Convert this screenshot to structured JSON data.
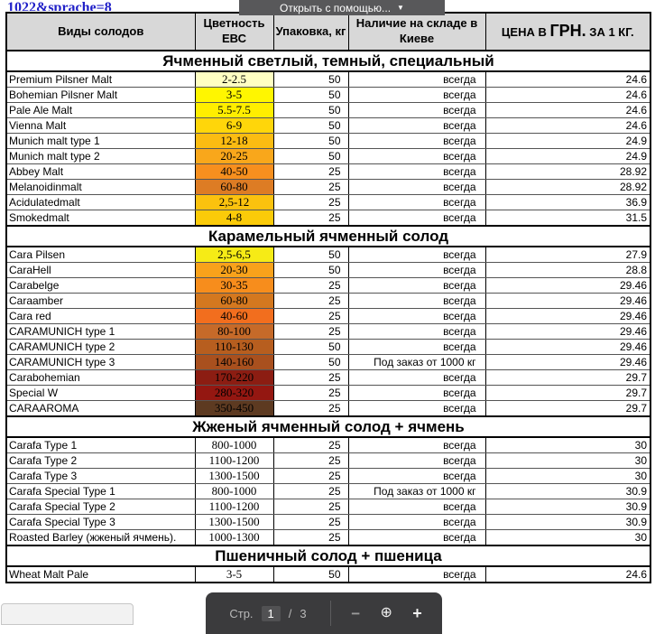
{
  "page": {
    "top_link_text": "1022&sprache=8",
    "open_with": {
      "label": "Открыть с помощью...",
      "caret": "▼"
    }
  },
  "table": {
    "columns": [
      "Виды солодов",
      "Цветность ЕВС",
      "Упаковка, кг",
      "Наличие на складе в Киеве"
    ],
    "price_header": {
      "pre": "ЦЕНА В ",
      "grn": "ГРН.",
      "post": " ЗА 1 КГ."
    },
    "sections": [
      {
        "title": "Ячменный светлый, темный, специальный",
        "rows": [
          {
            "name": "Premium Pilsner Malt",
            "ebc": "2-2.5",
            "ebc_color": "#FFFFC2",
            "pack": "50",
            "stock": "всегда",
            "price": "24.6"
          },
          {
            "name": "Bohemian Pilsner Malt",
            "ebc": "3-5",
            "ebc_color": "#FFF600",
            "pack": "50",
            "stock": "всегда",
            "price": "24.6"
          },
          {
            "name": "Pale Ale Malt",
            "ebc": "5.5-7.5",
            "ebc_color": "#FFEE00",
            "pack": "50",
            "stock": "всегда",
            "price": "24.6"
          },
          {
            "name": "Vienna Malt",
            "ebc": "6-9",
            "ebc_color": "#FFD60A",
            "pack": "50",
            "stock": "всегда",
            "price": "24.6"
          },
          {
            "name": "Munich malt type 1",
            "ebc": "12-18",
            "ebc_color": "#FBBC12",
            "pack": "50",
            "stock": "всегда",
            "price": "24.9"
          },
          {
            "name": "Munich malt type 2",
            "ebc": "20-25",
            "ebc_color": "#F9A71B",
            "pack": "50",
            "stock": "всегда",
            "price": "24.9"
          },
          {
            "name": "Abbey Malt",
            "ebc": "40-50",
            "ebc_color": "#F78F1E",
            "pack": "25",
            "stock": "всегда",
            "price": "28.92"
          },
          {
            "name": "Melanoidinmalt",
            "ebc": "60-80",
            "ebc_color": "#DD7C24",
            "pack": "25",
            "stock": "всегда",
            "price": "28.92"
          },
          {
            "name": "Acidulatedmalt",
            "ebc": "2,5-12",
            "ebc_color": "#FBC20E",
            "pack": "25",
            "stock": "всегда",
            "price": "36.9"
          },
          {
            "name": "Smokedmalt",
            "ebc": "4-8",
            "ebc_color": "#FBCB09",
            "pack": "25",
            "stock": "всегда",
            "price": "31.5"
          }
        ]
      },
      {
        "title": "Карамельный ячменный солод",
        "rows": [
          {
            "name": "Cara Pilsen",
            "ebc": "2,5-6,5",
            "ebc_color": "#F6EB16",
            "pack": "50",
            "stock": "всегда",
            "price": "27.9"
          },
          {
            "name": "CaraHell",
            "ebc": "20-30",
            "ebc_color": "#F9A21B",
            "pack": "50",
            "stock": "всегда",
            "price": "28.8"
          },
          {
            "name": "Carabelge",
            "ebc": "30-35",
            "ebc_color": "#F78D1C",
            "pack": "25",
            "stock": "всегда",
            "price": "29.46"
          },
          {
            "name": "Caraamber",
            "ebc": "60-80",
            "ebc_color": "#D4781F",
            "pack": "25",
            "stock": "всегда",
            "price": "29.46"
          },
          {
            "name": "Cara red",
            "ebc": "40-60",
            "ebc_color": "#F26E1E",
            "pack": "25",
            "stock": "всегда",
            "price": "29.46"
          },
          {
            "name": "CARAMUNICH type 1",
            "ebc": "80-100",
            "ebc_color": "#C66A29",
            "pack": "25",
            "stock": "всегда",
            "price": "29.46"
          },
          {
            "name": "CARAMUNICH  type 2",
            "ebc": "110-130",
            "ebc_color": "#B75E1F",
            "pack": "50",
            "stock": "всегда",
            "price": "29.46"
          },
          {
            "name": "CARAMUNICH  type 3",
            "ebc": "140-160",
            "ebc_color": "#A9501E",
            "pack": "50",
            "stock": "Под заказ от 1000 кг",
            "price": "29.46"
          },
          {
            "name": "Carabohemian",
            "ebc": "170-220",
            "ebc_color": "#8C1D12",
            "pack": "25",
            "stock": "всегда",
            "price": "29.7"
          },
          {
            "name": "Special W",
            "ebc": "280-320",
            "ebc_color": "#941711",
            "pack": "25",
            "stock": "всегда",
            "price": "29.7"
          },
          {
            "name": "CARAAROMA",
            "ebc": "350-450",
            "ebc_color": "#5D3A21",
            "pack": "25",
            "stock": "всегда",
            "price": "29.7"
          }
        ]
      },
      {
        "title": "Жженый ячменный солод + ячмень",
        "rows": [
          {
            "name": "Carafa Type 1",
            "ebc": "800-1000",
            "ebc_color": null,
            "pack": "25",
            "stock": "всегда",
            "price": "30"
          },
          {
            "name": "Carafa Type 2",
            "ebc": "1100-1200",
            "ebc_color": null,
            "pack": "25",
            "stock": "всегда",
            "price": "30"
          },
          {
            "name": "Carafa  Type 3",
            "ebc": "1300-1500",
            "ebc_color": null,
            "pack": "25",
            "stock": "всегда",
            "price": "30"
          },
          {
            "name": "Carafa Special  Type 1",
            "ebc": "800-1000",
            "ebc_color": null,
            "pack": "25",
            "stock": "Под заказ от 1000 кг",
            "price": "30.9"
          },
          {
            "name": "Carafa  Special Type 2",
            "ebc": "1100-1200",
            "ebc_color": null,
            "pack": "25",
            "stock": "всегда",
            "price": "30.9"
          },
          {
            "name": "Carafa Special Type 3",
            "ebc": "1300-1500",
            "ebc_color": null,
            "pack": "25",
            "stock": "всегда",
            "price": "30.9"
          },
          {
            "name": "Roasted Barley (жженый ячмень).",
            "ebc": "1000-1300",
            "ebc_color": null,
            "pack": "25",
            "stock": "всегда",
            "price": "30"
          }
        ]
      },
      {
        "title": "Пшеничный солод + пшеница",
        "rows": [
          {
            "name": "Wheat Malt Pale",
            "ebc": "3-5",
            "ebc_color": null,
            "pack": "50",
            "stock": "всегда",
            "price": "24.6"
          }
        ]
      }
    ]
  },
  "pdf_toolbar": {
    "page_label": "Стр.",
    "current_page": "1",
    "separator": "/",
    "total_pages": "3",
    "zoom_out_glyph": "−",
    "zoom_fit_glyph": "⊕",
    "zoom_in_glyph": "+"
  }
}
